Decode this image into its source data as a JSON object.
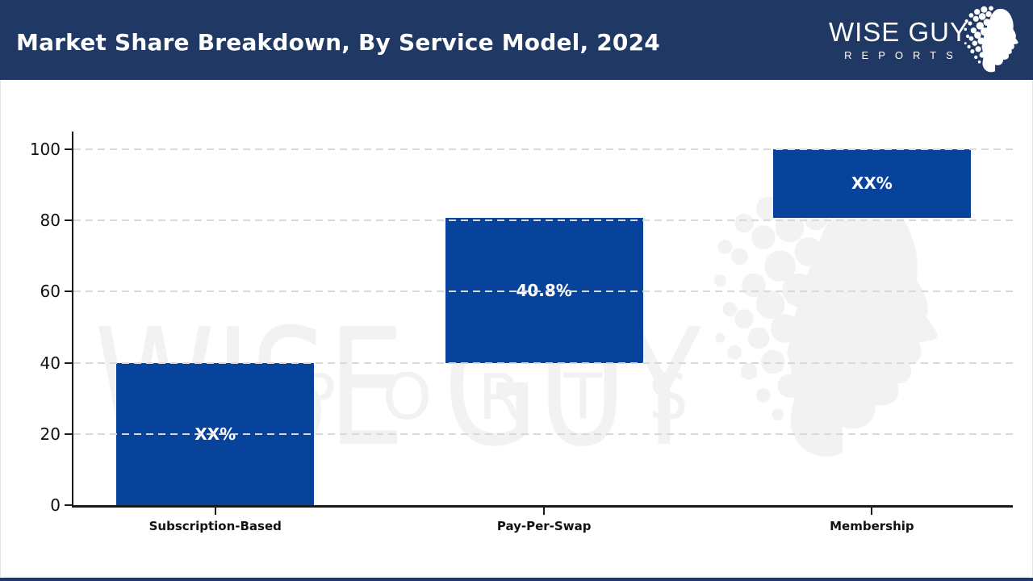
{
  "header": {
    "title": "Market Share Breakdown, By Service Model, 2024",
    "bg_color": "#1f3864",
    "logo": {
      "line1": "WISE GUY",
      "line2": "REPORTS"
    }
  },
  "watermark": {
    "line1": "WISE GUY",
    "line2": "REPORTS"
  },
  "chart_data": {
    "type": "bar",
    "subtype": "waterfall",
    "title": "Market Share Breakdown, By Service Model, 2024",
    "categories": [
      "Subscription-Based",
      "Pay-Per-Swap",
      "Membership"
    ],
    "segments": [
      {
        "category": "Subscription-Based",
        "start": 0,
        "end": 40,
        "label": "XX%"
      },
      {
        "category": "Pay-Per-Swap",
        "start": 40,
        "end": 80.8,
        "label": "40.8%"
      },
      {
        "category": "Membership",
        "start": 80.8,
        "end": 100,
        "label": "XX%"
      }
    ],
    "yticks": [
      0,
      20,
      40,
      60,
      80,
      100
    ],
    "ylim": [
      0,
      105
    ],
    "xlabel": "",
    "ylabel": "",
    "grid": "horizontal dashed, drawn over bars",
    "legend": "none",
    "bar_color": "#08439b",
    "bar_label_color": "#ffffff",
    "grid_color": "#d9d9d9",
    "axis_color": "#1a1a1a",
    "bar_centers_pct": [
      15.1,
      50.1,
      85.0
    ],
    "bar_width_pct": 21.05
  },
  "footer": {
    "bar_color": "#1f3864"
  }
}
